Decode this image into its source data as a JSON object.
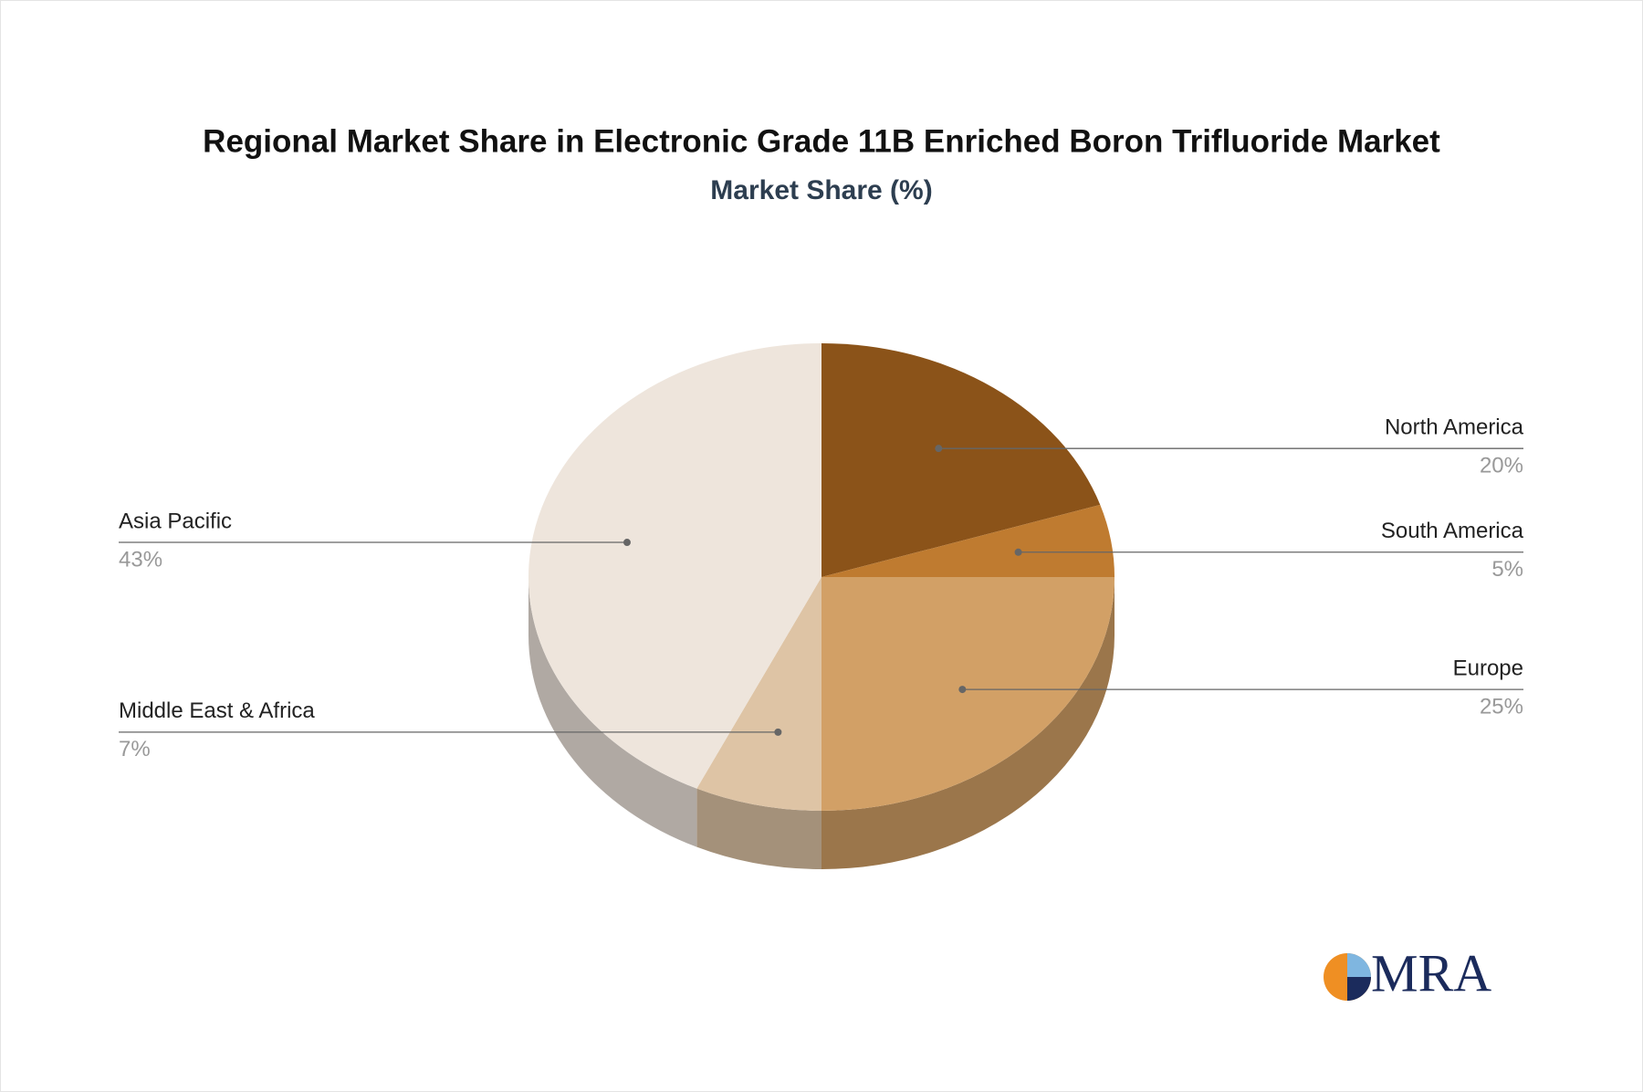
{
  "chart_data": {
    "type": "pie",
    "title": "Regional Market Share in Electronic Grade 11B Enriched Boron Trifluoride Market",
    "subtitle": "Market Share (%)",
    "categories": [
      "North America",
      "South America",
      "Europe",
      "Middle East & Africa",
      "Asia Pacific"
    ],
    "values": [
      20,
      5,
      25,
      7,
      43
    ],
    "value_labels": [
      "20%",
      "5%",
      "25%",
      "7%",
      "43%"
    ],
    "colors": [
      "#8b5319",
      "#bf7b30",
      "#d2a066",
      "#dec4a5",
      "#eee5dc"
    ]
  },
  "logo": "MRA"
}
